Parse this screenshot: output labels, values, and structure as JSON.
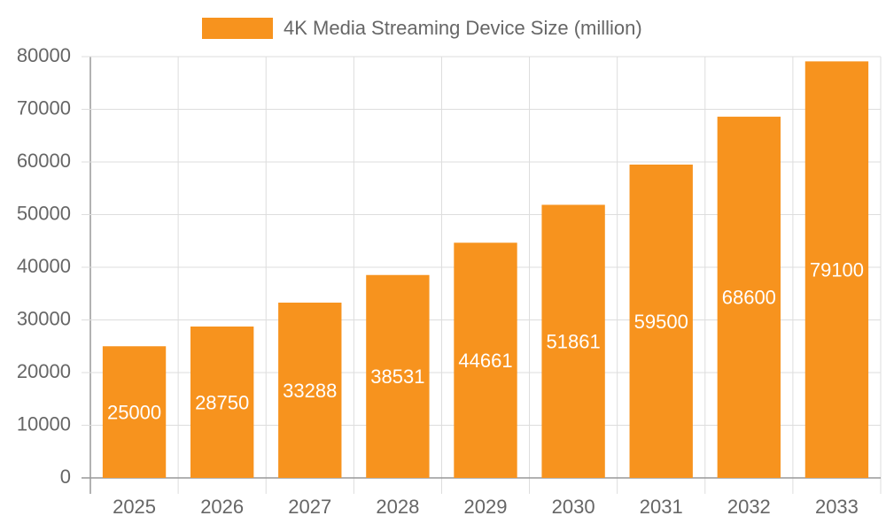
{
  "chart_data": {
    "type": "bar",
    "categories": [
      "2025",
      "2026",
      "2027",
      "2028",
      "2029",
      "2030",
      "2031",
      "2032",
      "2033"
    ],
    "series": [
      {
        "name": "4K Media Streaming Device Size (million)",
        "color": "#f7931e",
        "values": [
          25000,
          28750,
          33288,
          38531,
          44661,
          51861,
          59500,
          68600,
          79100
        ]
      }
    ],
    "ylim": [
      0,
      80000
    ],
    "yticks": [
      0,
      10000,
      20000,
      30000,
      40000,
      50000,
      60000,
      70000,
      80000
    ],
    "grid": true,
    "legend": "top",
    "data_labels": true
  }
}
